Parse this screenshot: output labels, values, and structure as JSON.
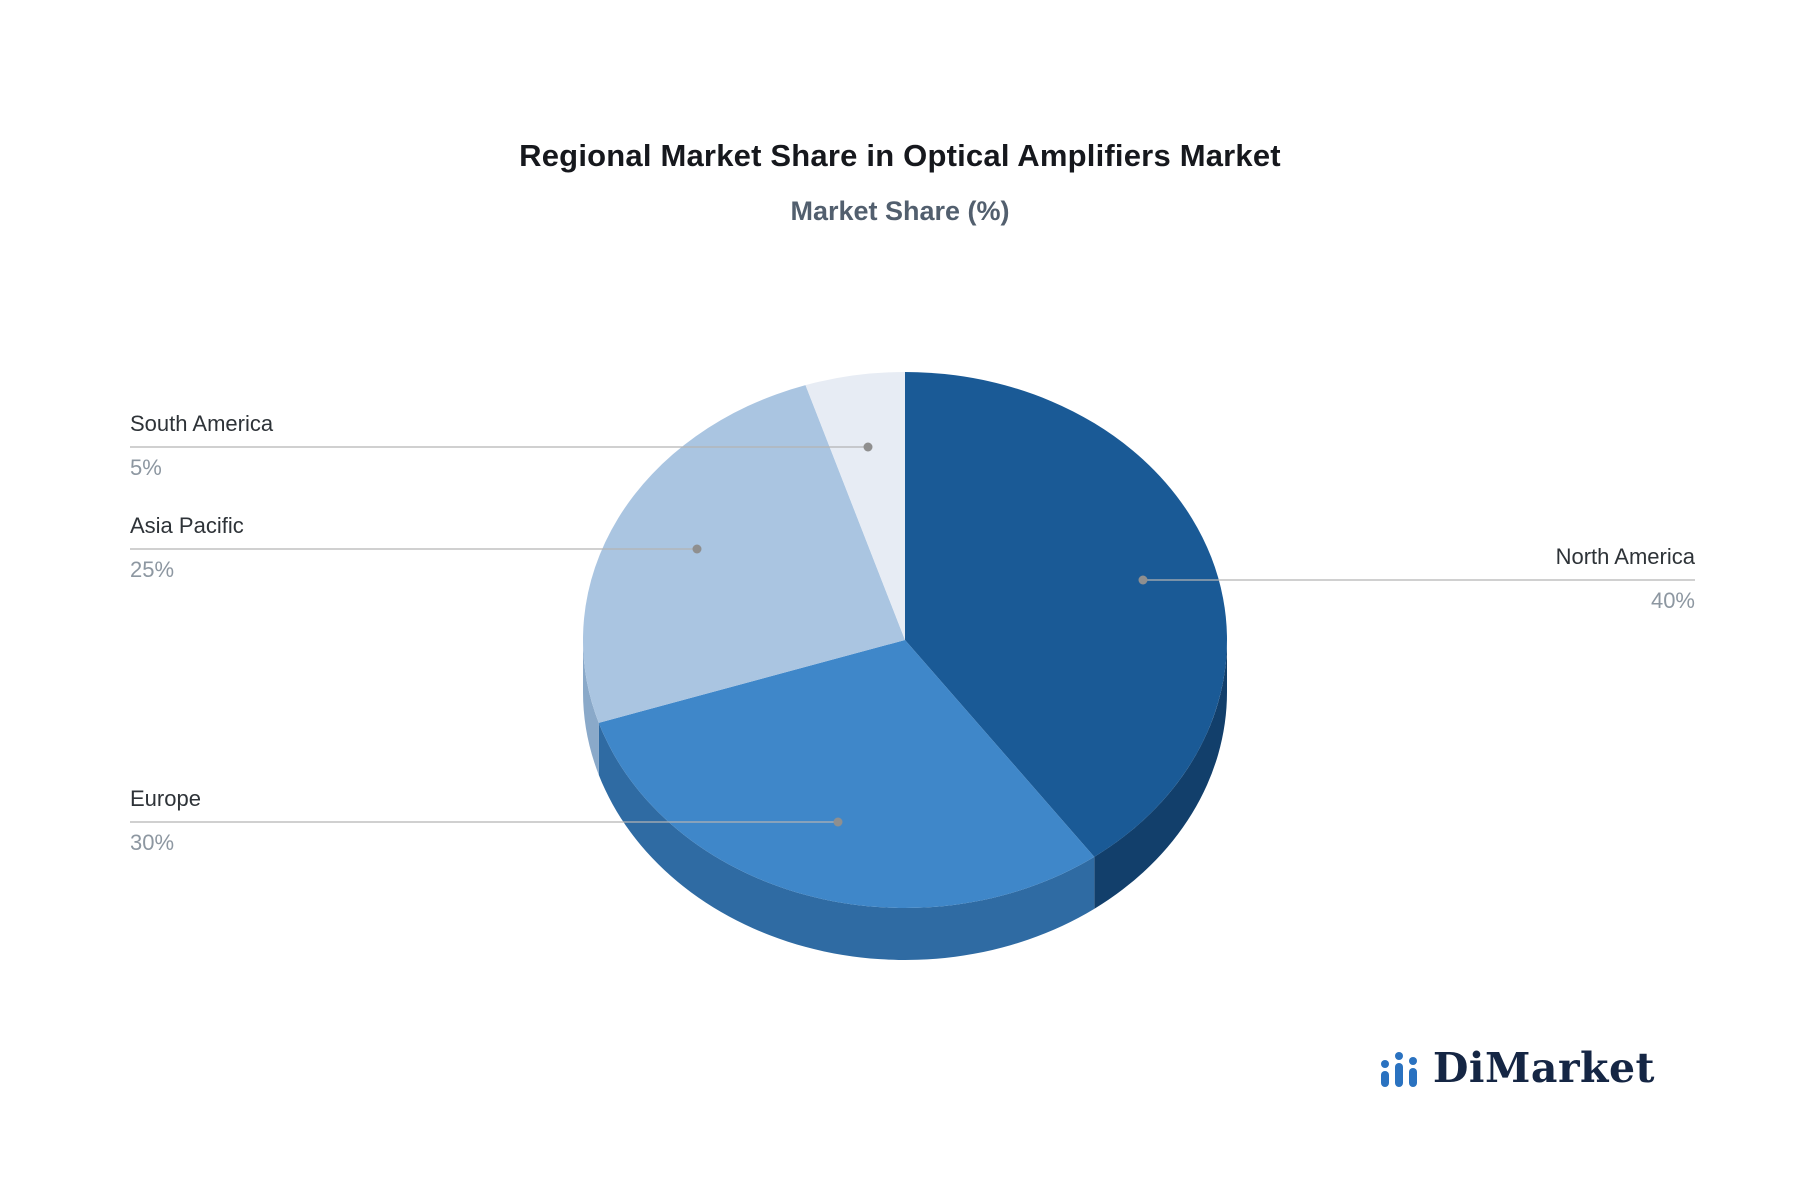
{
  "chart_data": {
    "type": "pie",
    "style": "3d",
    "title": "Regional Market Share in Optical Amplifiers Market",
    "subtitle": "Market Share (%)",
    "unit": "%",
    "legend_position": "none",
    "label_style": "callout-lines",
    "categories": [
      "North America",
      "Europe",
      "Asia Pacific",
      "South America"
    ],
    "values": [
      40,
      30,
      25,
      5
    ],
    "slices": [
      {
        "label": "North America",
        "value": 40,
        "display": "40%",
        "color": "#1a5a96",
        "side_color": "#123f6b"
      },
      {
        "label": "Europe",
        "value": 30,
        "display": "30%",
        "color": "#3f87c9",
        "side_color": "#2f6ba3"
      },
      {
        "label": "Asia Pacific",
        "value": 25,
        "display": "25%",
        "color": "#aac5e1",
        "side_color": "#8aa9c9"
      },
      {
        "label": "South America",
        "value": 5,
        "display": "5%",
        "color": "#e7ecf4",
        "side_color": "#c2cdda"
      }
    ]
  },
  "branding": {
    "logo_text": "DiMarket",
    "brand_color": "#2a72c0",
    "text_color": "#152644"
  }
}
